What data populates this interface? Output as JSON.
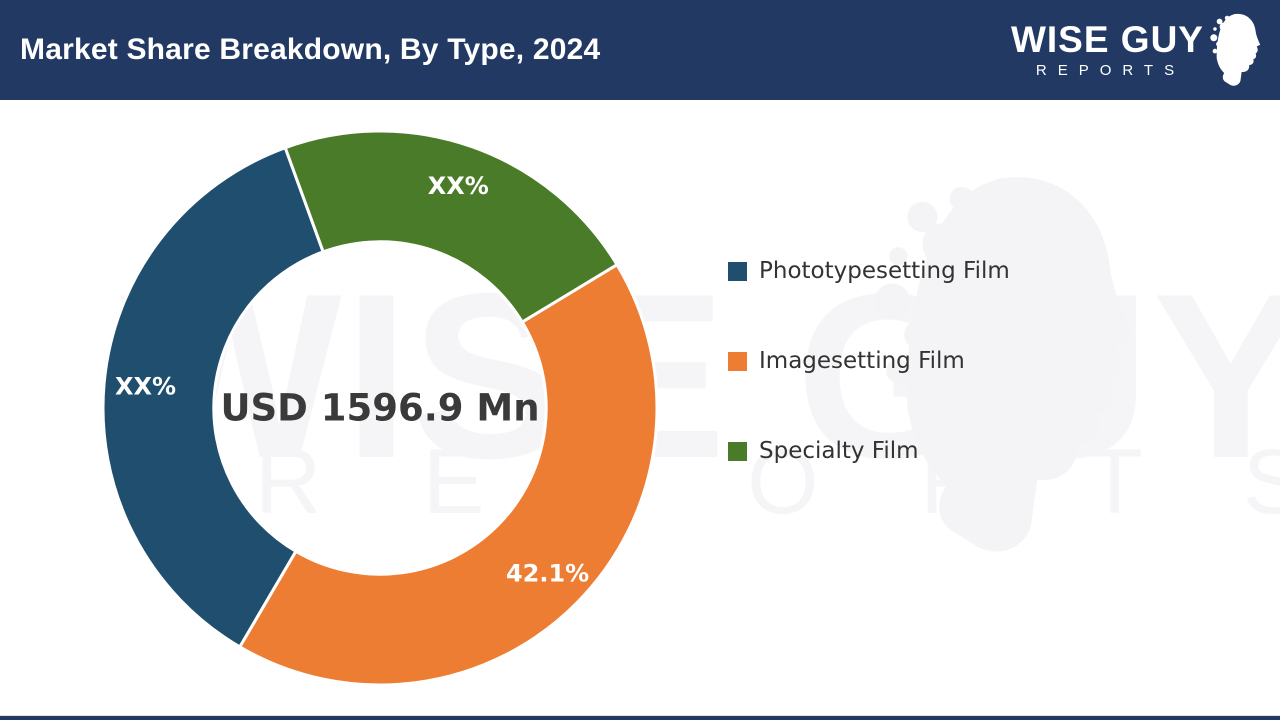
{
  "header": {
    "title": "Market Share Breakdown, By Type, 2024",
    "background_color": "#223963",
    "text_color": "#ffffff",
    "logo": {
      "wordmark": "WISE GUY",
      "subtext": "REPORTS",
      "face_icon": "dotted-face-profile"
    }
  },
  "chart_data": {
    "type": "pie",
    "subtype": "donut",
    "title": "Market Share Breakdown, By Type, 2024",
    "center_label": "USD 1596.9 Mn",
    "legend_position": "right",
    "start_angle_deg": 110,
    "direction": "counterclockwise",
    "inner_radius_ratio": 0.6,
    "label_distance_ratio": 0.85,
    "slice_border_color": "#ffffff",
    "series": [
      {
        "name": "Phototypesetting Film",
        "value_pct": 36.0,
        "value_label": "XX%",
        "color": "#1F4E6F"
      },
      {
        "name": "Imagesetting Film",
        "value_pct": 42.1,
        "value_label": "42.1%",
        "color": "#ED7D33"
      },
      {
        "name": "Specialty Film",
        "value_pct": 21.9,
        "value_label": "XX%",
        "color": "#4A7B28"
      }
    ]
  },
  "watermark": {
    "wordmark": "WISE GUY",
    "subtext": "R E P O R T S"
  },
  "footer": {
    "bar_color": "#223963"
  }
}
